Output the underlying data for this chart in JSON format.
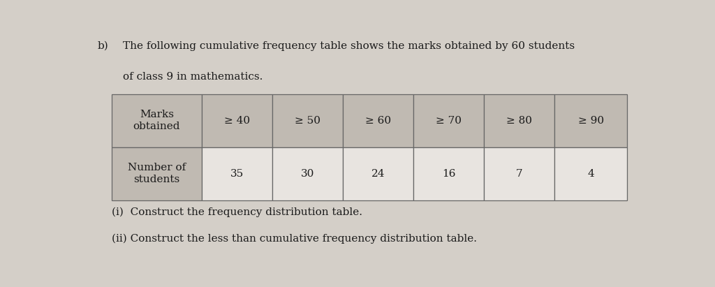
{
  "title_b": "b)",
  "title_line1": "The following cumulative frequency table shows the marks obtained by 60 students",
  "title_line2": "of class 9 in mathematics.",
  "col_headers": [
    "Marks\nobtained",
    "≥ 40",
    "≥ 50",
    "≥ 60",
    "≥ 70",
    "≥ 80",
    "≥ 90"
  ],
  "row_label": "Number of\nstudents",
  "row_values": [
    "35",
    "30",
    "24",
    "16",
    "7",
    "4"
  ],
  "question_i": "(i)  Construct the frequency distribution table.",
  "question_ii": "(ii) Construct the less than cumulative frequency distribution table.",
  "bg_color": "#d4cfc8",
  "table_header_bg": "#c0bab2",
  "table_cell_bg": "#e8e4e0",
  "border_color": "#666666",
  "text_color": "#1a1a1a",
  "title_fontsize": 11,
  "table_fontsize": 11,
  "question_fontsize": 11
}
